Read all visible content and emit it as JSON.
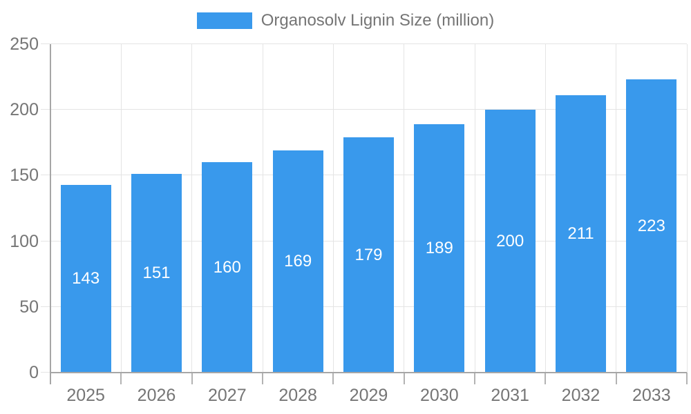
{
  "legend": {
    "label": "Organosolv Lignin Size (million)"
  },
  "colors": {
    "bar": "#3999EC",
    "bar_label_text": "#FFFFFF",
    "axis_text": "#757575",
    "legend_text": "#757575",
    "grid_line": "#E4E4E4",
    "axis_line": "#A6A6A6",
    "tick_mark": "#B3B3B3",
    "background": "#FFFFFF"
  },
  "chart_data": {
    "type": "bar",
    "title": "",
    "legend": "Organosolv Lignin Size (million)",
    "legend_position": "top",
    "categories": [
      "2025",
      "2026",
      "2027",
      "2028",
      "2029",
      "2030",
      "2031",
      "2032",
      "2033"
    ],
    "series": [
      {
        "name": "Organosolv Lignin Size (million)",
        "values": [
          143,
          151,
          160,
          169,
          179,
          189,
          200,
          211,
          223
        ]
      }
    ],
    "bar_value_labels": [
      "143",
      "151",
      "160",
      "169",
      "179",
      "189",
      "200",
      "211",
      "223"
    ],
    "xlabel": "",
    "ylabel": "",
    "ylim": [
      0,
      250
    ],
    "yticks": [
      0,
      50,
      100,
      150,
      200,
      250
    ],
    "grid": true
  }
}
